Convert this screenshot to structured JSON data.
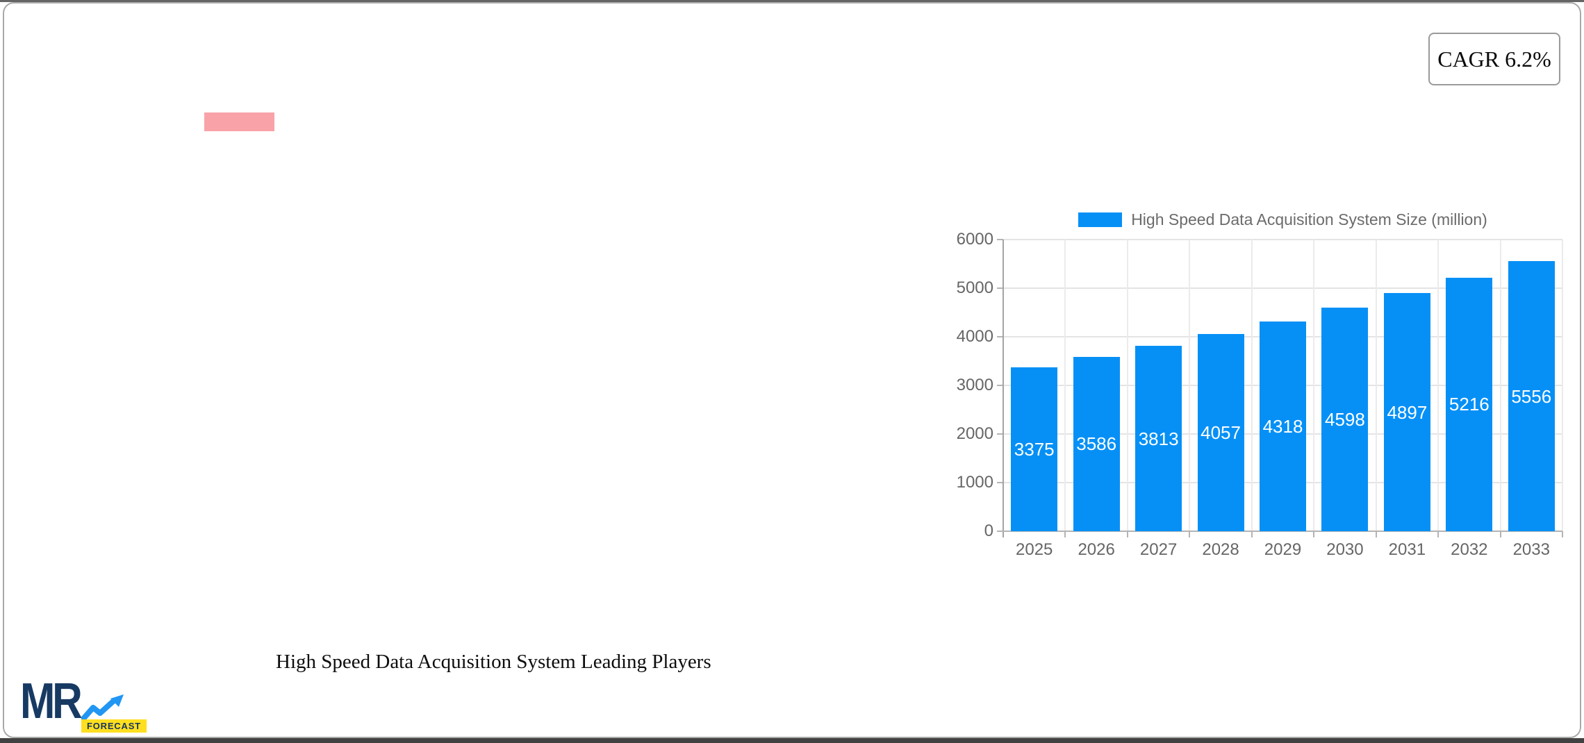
{
  "page": {
    "cagr_label": "CAGR 6.2%",
    "bottom_title": "High Speed Data Acquisition System Leading Players",
    "logo": {
      "mr": "MR",
      "forecast": "FORECAST"
    }
  },
  "colors": {
    "bar_blue": "#0690f6",
    "accent_pink": "#f9a3a9",
    "logo_navy": "#173a63",
    "logo_yellow": "#ffdf1f",
    "axis_text": "#666666",
    "legend_text": "#6b6b6b"
  },
  "chart_data": {
    "type": "bar",
    "title": "",
    "legend": "High Speed Data Acquisition System Size (million)",
    "legend_position": "top",
    "categories": [
      "2025",
      "2026",
      "2027",
      "2028",
      "2029",
      "2030",
      "2031",
      "2032",
      "2033"
    ],
    "values": [
      3375,
      3586,
      3813,
      4057,
      4318,
      4598,
      4897,
      5216,
      5556
    ],
    "value_labels_inside_bars": true,
    "xlabel": "",
    "ylabel": "",
    "ylim": [
      0,
      6000
    ],
    "ytick_step": 1000,
    "grid": true
  }
}
